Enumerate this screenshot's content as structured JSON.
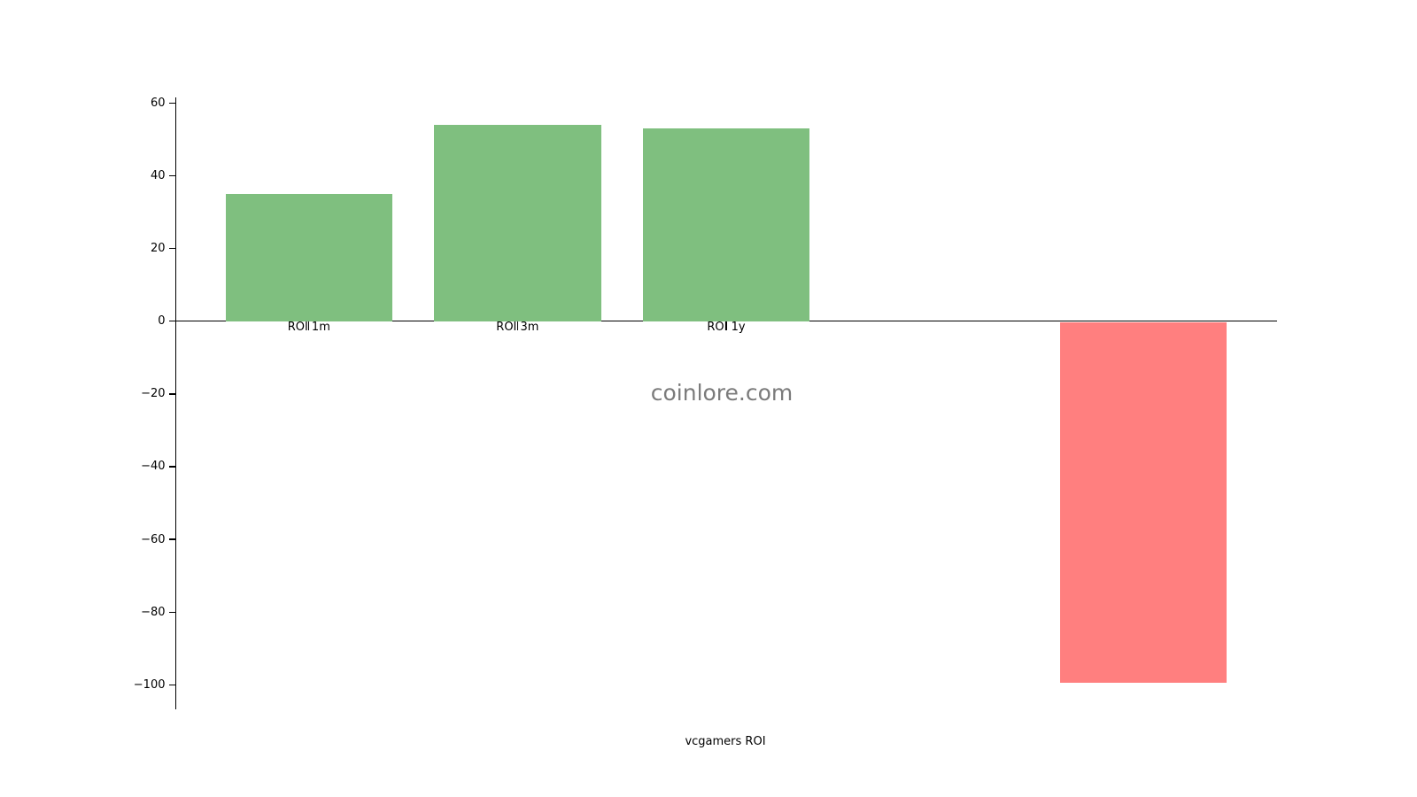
{
  "page": {
    "background": "#ffffff"
  },
  "watermark": {
    "text": "coinlore.com",
    "color": "#7b7b7b"
  },
  "chart_data": {
    "type": "bar",
    "title": "vcgamers ROI",
    "xlabel": "vcgamers ROI",
    "ylabel": "",
    "watermark": "coinlore.com",
    "categories": [
      "ROI 1m",
      "ROI 3m",
      "ROI 1y",
      "",
      ""
    ],
    "values": [
      35,
      54,
      53,
      null,
      -99
    ],
    "bar_colors": [
      "#7fbf7f",
      "#7fbf7f",
      "#7fbf7f",
      null,
      "#ff7f7f"
    ],
    "positive_color": "#7fbf7f",
    "negative_color": "#ff7f7f",
    "axis_color": "#000000",
    "grid": false,
    "legend": null,
    "ylim": [
      -106.65,
      61.65
    ],
    "yticks": {
      "values": [
        60,
        40,
        20,
        0,
        -20,
        -40,
        -60,
        -80,
        -100
      ],
      "labels": [
        "60",
        "40",
        "20",
        "0",
        "−20",
        "−40",
        "−60",
        "−80",
        "−100"
      ]
    }
  }
}
